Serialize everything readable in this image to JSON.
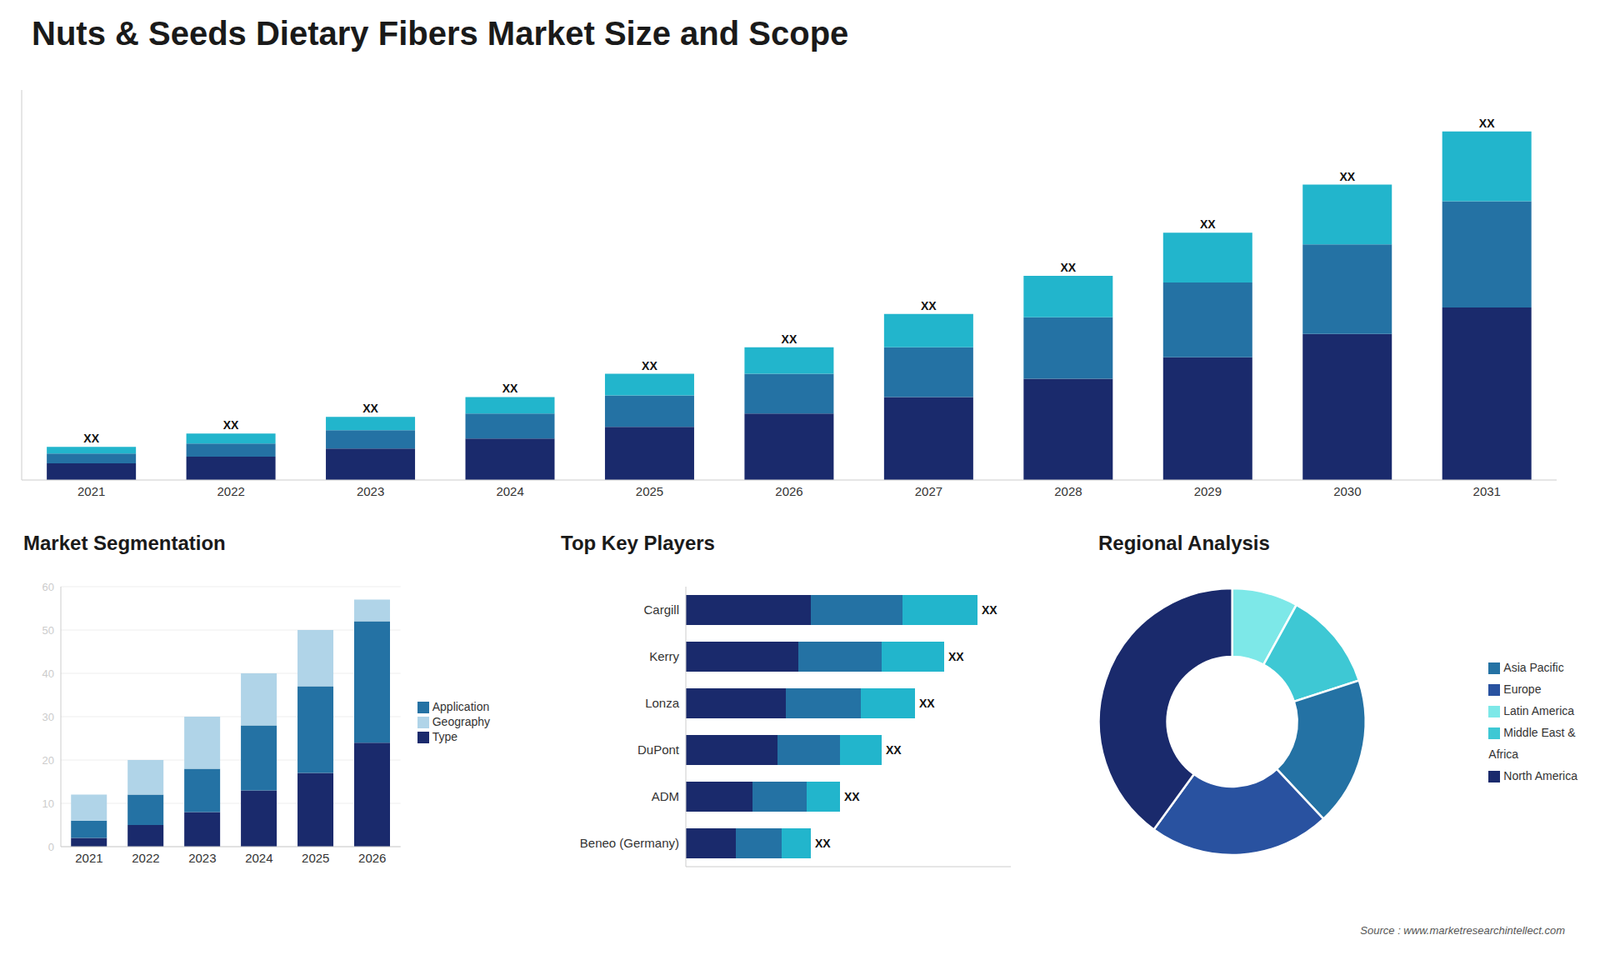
{
  "title": "Nuts & Seeds Dietary Fibers Market Size and Scope",
  "source": "Source : www.marketresearchintellect.com",
  "chart_data": [
    {
      "type": "bar",
      "stacked": true,
      "categories": [
        "2021",
        "2022",
        "2023",
        "2024",
        "2025",
        "2026",
        "2027",
        "2028",
        "2029",
        "2030",
        "2031"
      ],
      "series": [
        {
          "color": "#1a2a6c",
          "values": [
            1.0,
            1.4,
            1.9,
            2.5,
            3.2,
            4.0,
            5.0,
            6.1,
            7.4,
            8.8,
            10.4
          ]
        },
        {
          "color": "#2472a4",
          "values": [
            0.6,
            0.8,
            1.1,
            1.5,
            1.9,
            2.4,
            3.0,
            3.7,
            4.5,
            5.4,
            6.4
          ]
        },
        {
          "color": "#22b5cc",
          "values": [
            0.4,
            0.6,
            0.8,
            1.0,
            1.3,
            1.6,
            2.0,
            2.5,
            3.0,
            3.6,
            4.2
          ]
        }
      ],
      "annotations": [
        "XX",
        "XX",
        "XX",
        "XX",
        "XX",
        "XX",
        "XX",
        "XX",
        "XX",
        "XX",
        "XX"
      ],
      "ylim": [
        0,
        23.5
      ],
      "tick_labels": "x",
      "grid": false
    },
    {
      "type": "bar",
      "stacked": true,
      "title": "Market Segmentation",
      "categories": [
        "2021",
        "2022",
        "2023",
        "2024",
        "2025",
        "2026"
      ],
      "series": [
        {
          "name": "Type",
          "color": "#1a2a6c",
          "values": [
            2,
            5,
            8,
            13,
            17,
            24
          ]
        },
        {
          "name": "Application",
          "color": "#2472a4",
          "values": [
            4,
            7,
            10,
            15,
            20,
            28
          ]
        },
        {
          "name": "Geography",
          "color": "#b0d4e8",
          "values": [
            6,
            8,
            12,
            12,
            13,
            5
          ]
        }
      ],
      "ylim": [
        0,
        60
      ],
      "yticks": [
        0,
        10,
        20,
        30,
        40,
        50,
        60
      ],
      "grid": true,
      "legend": "right"
    },
    {
      "type": "bar",
      "stacked": true,
      "orientation": "horizontal",
      "title": "Top Key Players",
      "categories": [
        "Cargill",
        "Kerry",
        "Lonza",
        "DuPont",
        "ADM",
        "Beneo (Germany)"
      ],
      "series": [
        {
          "color": "#1a2a6c",
          "values": [
            0.3,
            0.27,
            0.24,
            0.22,
            0.16,
            0.12
          ]
        },
        {
          "color": "#2472a4",
          "values": [
            0.22,
            0.2,
            0.18,
            0.15,
            0.13,
            0.11
          ]
        },
        {
          "color": "#22b5cc",
          "values": [
            0.18,
            0.15,
            0.13,
            0.1,
            0.08,
            0.07
          ]
        }
      ],
      "annotations": [
        "XX",
        "XX",
        "XX",
        "XX",
        "XX",
        "XX"
      ],
      "xlim": [
        0,
        0.78
      ],
      "tick_labels": "y",
      "grid": false
    },
    {
      "type": "donut",
      "title": "Regional Analysis",
      "categories": [
        "Latin America",
        "Middle East &\nAfrica",
        "Asia Pacific",
        "Europe",
        "North America"
      ],
      "values": [
        8,
        12,
        18,
        22,
        40
      ],
      "colors": [
        "#7de8e8",
        "#3ec8d4",
        "#2472a4",
        "#2952a0",
        "#1a2a6c"
      ],
      "legend": "right"
    }
  ]
}
